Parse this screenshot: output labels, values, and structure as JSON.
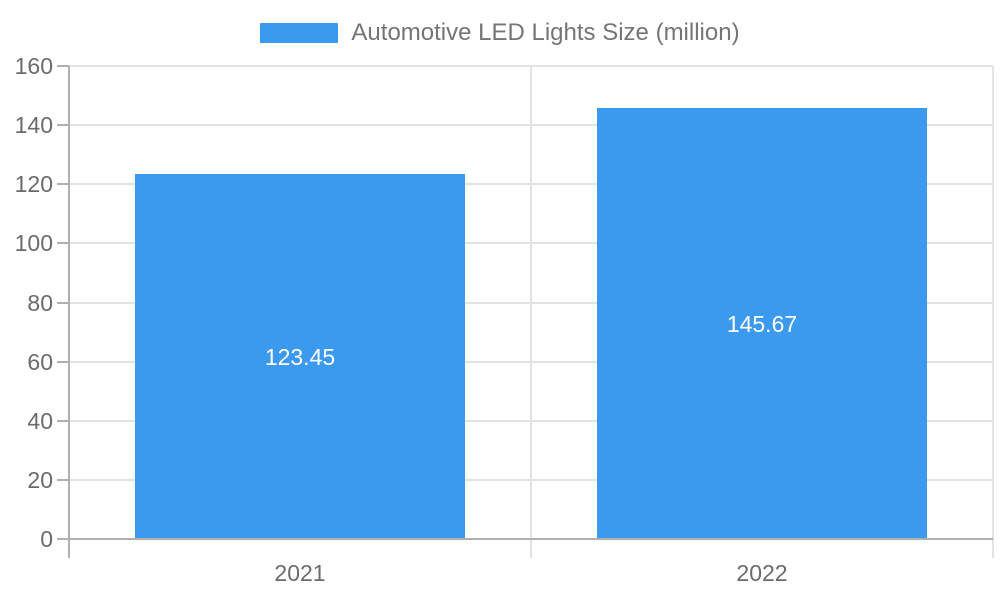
{
  "chart_data": {
    "type": "bar",
    "title": "Automotive LED Lights Size (million)",
    "categories": [
      "2021",
      "2022"
    ],
    "series": [
      {
        "name": "Automotive LED Lights Size (million)",
        "values": [
          123.45,
          145.67
        ]
      }
    ],
    "value_labels": [
      "123.45",
      "145.67"
    ],
    "xlabel": "",
    "ylabel": "",
    "ylim": [
      0,
      160
    ],
    "yticks": [
      0,
      20,
      40,
      60,
      80,
      100,
      120,
      140,
      160
    ],
    "grid": true,
    "legend_position": "top-center",
    "colors": {
      "bar": "#3b99ee",
      "gridline": "#e3e3e3",
      "axis_line": "#b0b0b0",
      "axis_label": "#6b6b6b",
      "legend_text": "#757575",
      "value_label": "#ffffff",
      "background": "#ffffff"
    }
  }
}
